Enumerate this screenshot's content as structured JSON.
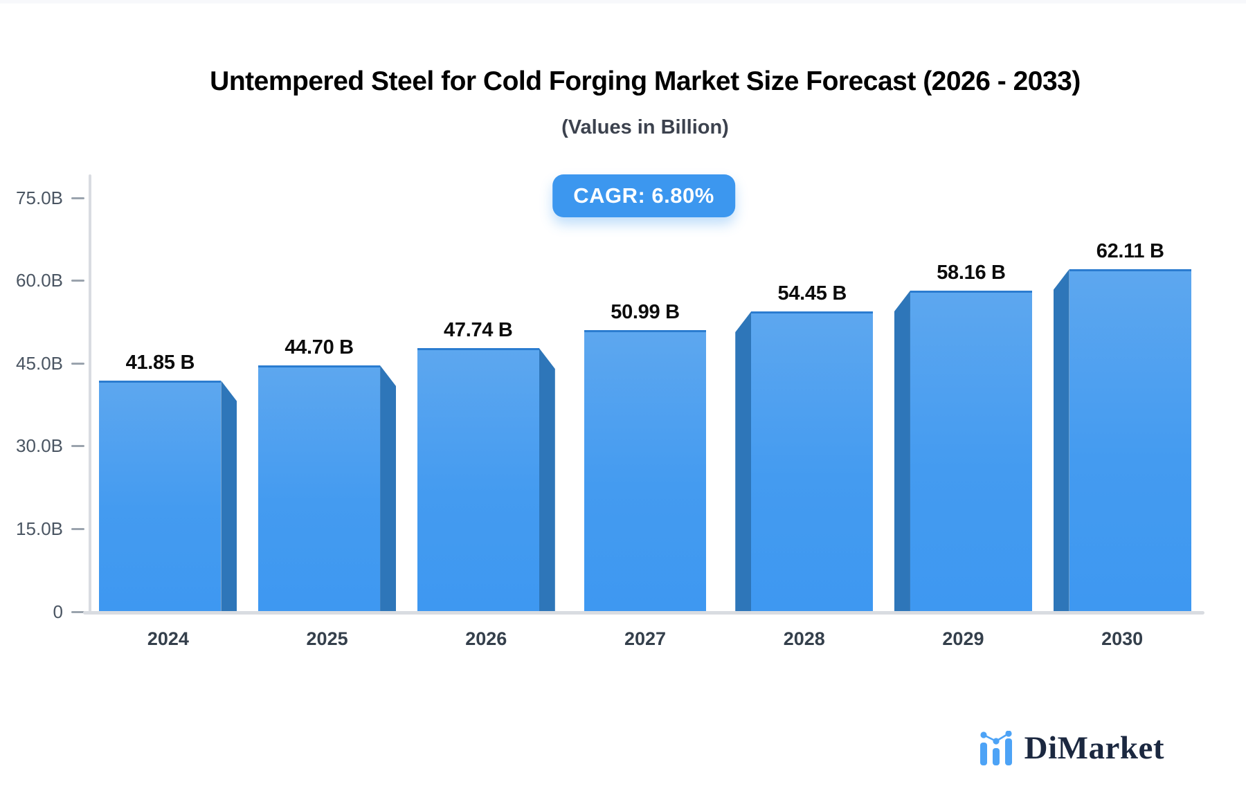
{
  "header": {
    "title": "Untempered Steel for Cold Forging Market Size Forecast (2026 - 2033)",
    "subtitle": "(Values in Billion)",
    "badge": "CAGR: 6.80%"
  },
  "chart_data": {
    "type": "bar",
    "title": "Untempered Steel for Cold Forging Market Size Forecast (2026 - 2033)",
    "subtitle": "(Values in Billion)",
    "cagr": "6.80%",
    "categories": [
      "2024",
      "2025",
      "2026",
      "2027",
      "2028",
      "2029",
      "2030"
    ],
    "values": [
      41.85,
      44.7,
      47.74,
      50.99,
      54.45,
      58.16,
      62.11
    ],
    "value_labels": [
      "41.85 B",
      "44.70 B",
      "47.74 B",
      "50.99 B",
      "54.45 B",
      "58.16 B",
      "62.11 B"
    ],
    "xlabel": "",
    "ylabel": "",
    "ylim": [
      0,
      75
    ],
    "yticks": [
      {
        "label": "75.0B",
        "value": 75
      },
      {
        "label": "60.0B",
        "value": 60
      },
      {
        "label": "45.0B",
        "value": 45
      },
      {
        "label": "30.0B",
        "value": 30
      },
      {
        "label": "15.0B",
        "value": 15
      },
      {
        "label": "0",
        "value": 0
      }
    ],
    "grid": false,
    "legend": false,
    "bar_style": "3d-extruded"
  },
  "colors": {
    "accent_blue": "#3c97ef",
    "bar_face_top": "#5da7ef",
    "bar_face": "#3e98f1",
    "bar_side": "#2e76b9",
    "bar_top_border": "#2b7cd0",
    "axis_line": "#d9dce1",
    "tick_dash": "#9aa3ad",
    "tick_text": "#4a5562",
    "year_text": "#343f4b",
    "value_text": "#0c0c0c",
    "brand_navy": "#1b2840",
    "brand_blue": "#4da3f6"
  },
  "footer": {
    "brand": "DiMarket",
    "logo_icon": "bar-line-chart-icon"
  }
}
